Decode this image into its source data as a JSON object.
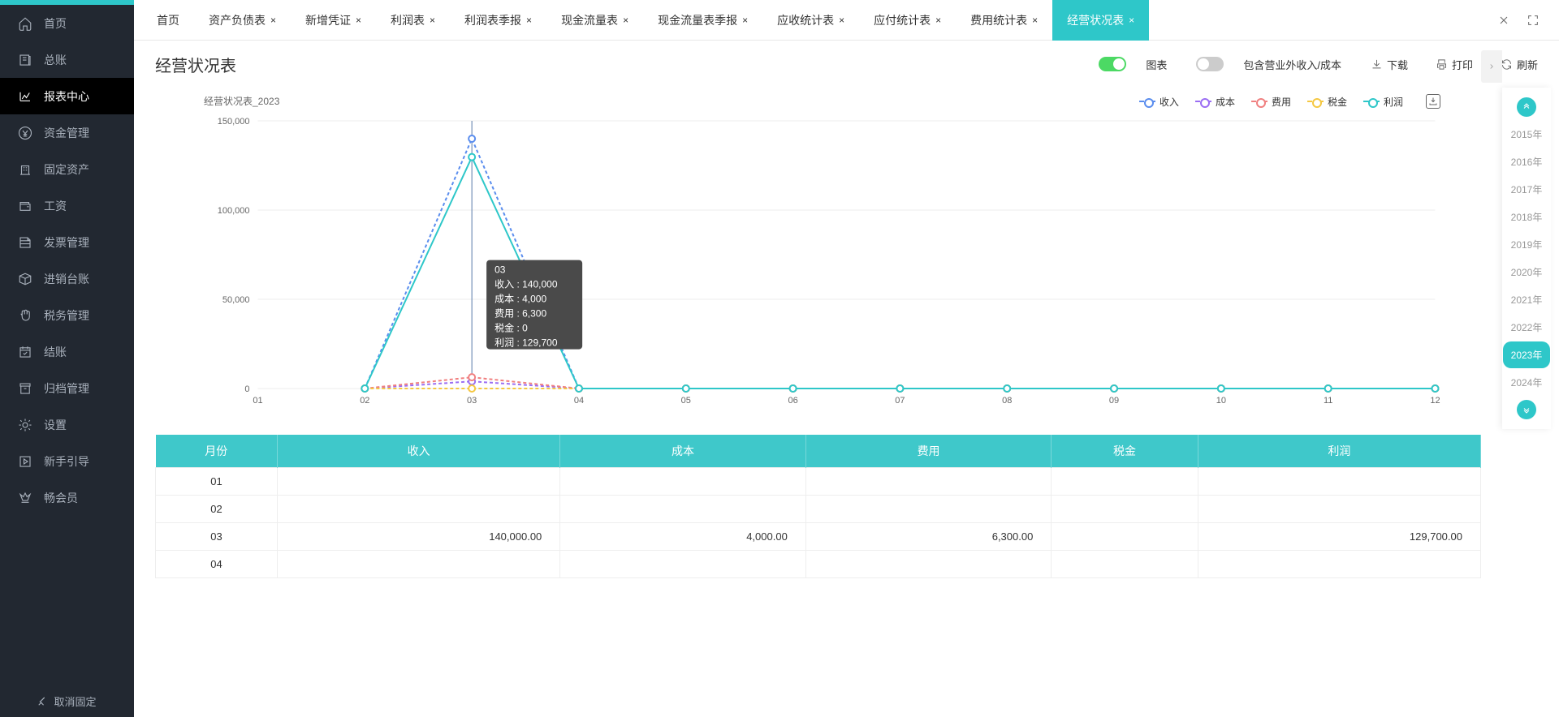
{
  "sidebar": {
    "items": [
      {
        "label": "首页",
        "icon": "home"
      },
      {
        "label": "总账",
        "icon": "ledger"
      },
      {
        "label": "报表中心",
        "icon": "chart",
        "active": true
      },
      {
        "label": "资金管理",
        "icon": "yen"
      },
      {
        "label": "固定资产",
        "icon": "building"
      },
      {
        "label": "工资",
        "icon": "wallet"
      },
      {
        "label": "发票管理",
        "icon": "receipt"
      },
      {
        "label": "进销台账",
        "icon": "box"
      },
      {
        "label": "税务管理",
        "icon": "hand"
      },
      {
        "label": "结账",
        "icon": "calendar"
      },
      {
        "label": "归档管理",
        "icon": "archive"
      },
      {
        "label": "设置",
        "icon": "gear"
      },
      {
        "label": "新手引导",
        "icon": "play"
      },
      {
        "label": "畅会员",
        "icon": "vip"
      }
    ],
    "unpin": "取消固定"
  },
  "tabs": [
    {
      "label": "首页",
      "closable": false
    },
    {
      "label": "资产负债表",
      "closable": true
    },
    {
      "label": "新增凭证",
      "closable": true
    },
    {
      "label": "利润表",
      "closable": true
    },
    {
      "label": "利润表季报",
      "closable": true
    },
    {
      "label": "现金流量表",
      "closable": true
    },
    {
      "label": "现金流量表季报",
      "closable": true
    },
    {
      "label": "应收统计表",
      "closable": true
    },
    {
      "label": "应付统计表",
      "closable": true
    },
    {
      "label": "费用统计表",
      "closable": true
    },
    {
      "label": "经营状况表",
      "closable": true,
      "active": true
    }
  ],
  "page": {
    "title": "经营状况表",
    "switch_chart": "图表",
    "switch_extra": "包含营业外收入/成本",
    "download": "下载",
    "print": "打印",
    "refresh": "刷新"
  },
  "chart": {
    "title": "经营状况表_2023",
    "type": "line",
    "x_categories": [
      "01",
      "02",
      "03",
      "04",
      "05",
      "06",
      "07",
      "08",
      "09",
      "10",
      "11",
      "12"
    ],
    "y_ticks": [
      0,
      50000,
      100000,
      150000
    ],
    "y_tick_labels": [
      "0",
      "50,000",
      "100,000",
      "150,000"
    ],
    "ylim": [
      0,
      150000
    ],
    "grid_color": "#eeeeee",
    "background_color": "#ffffff",
    "series": [
      {
        "name": "收入",
        "color": "#5a8dee",
        "values": [
          null,
          0,
          140000,
          0,
          0,
          0,
          0,
          0,
          0,
          0,
          0,
          0
        ],
        "dash": true
      },
      {
        "name": "成本",
        "color": "#9b6ef3",
        "values": [
          null,
          0,
          4000,
          0,
          0,
          0,
          0,
          0,
          0,
          0,
          0,
          0
        ],
        "dash": true
      },
      {
        "name": "费用",
        "color": "#f08080",
        "values": [
          null,
          0,
          6300,
          0,
          0,
          0,
          0,
          0,
          0,
          0,
          0,
          0
        ],
        "dash": true
      },
      {
        "name": "税金",
        "color": "#f5c842",
        "values": [
          null,
          0,
          0,
          0,
          0,
          0,
          0,
          0,
          0,
          0,
          0,
          0
        ],
        "dash": true
      },
      {
        "name": "利润",
        "color": "#2ec7c9",
        "values": [
          null,
          0,
          129700,
          0,
          0,
          0,
          0,
          0,
          0,
          0,
          0,
          0
        ],
        "dash": false
      }
    ],
    "tooltip": {
      "category": "03",
      "rows": [
        {
          "label": "收入",
          "value": "140,000"
        },
        {
          "label": "成本",
          "value": "4,000"
        },
        {
          "label": "费用",
          "value": "6,300"
        },
        {
          "label": "税金",
          "value": "0"
        },
        {
          "label": "利润",
          "value": "129,700"
        }
      ],
      "bg": "#4a4a4a"
    },
    "marker_radius": 4,
    "line_width": 2
  },
  "table": {
    "columns": [
      "月份",
      "收入",
      "成本",
      "费用",
      "税金",
      "利润"
    ],
    "header_bg": "#3fc8ca",
    "rows": [
      {
        "month": "01",
        "revenue": "",
        "cost": "",
        "expense": "",
        "tax": "",
        "profit": ""
      },
      {
        "month": "02",
        "revenue": "",
        "cost": "",
        "expense": "",
        "tax": "",
        "profit": ""
      },
      {
        "month": "03",
        "revenue": "140,000.00",
        "cost": "4,000.00",
        "expense": "6,300.00",
        "tax": "",
        "profit": "129,700.00"
      },
      {
        "month": "04",
        "revenue": "",
        "cost": "",
        "expense": "",
        "tax": "",
        "profit": ""
      }
    ]
  },
  "years": {
    "list": [
      "2015年",
      "2016年",
      "2017年",
      "2018年",
      "2019年",
      "2020年",
      "2021年",
      "2022年",
      "2023年",
      "2024年"
    ],
    "active": "2023年"
  }
}
